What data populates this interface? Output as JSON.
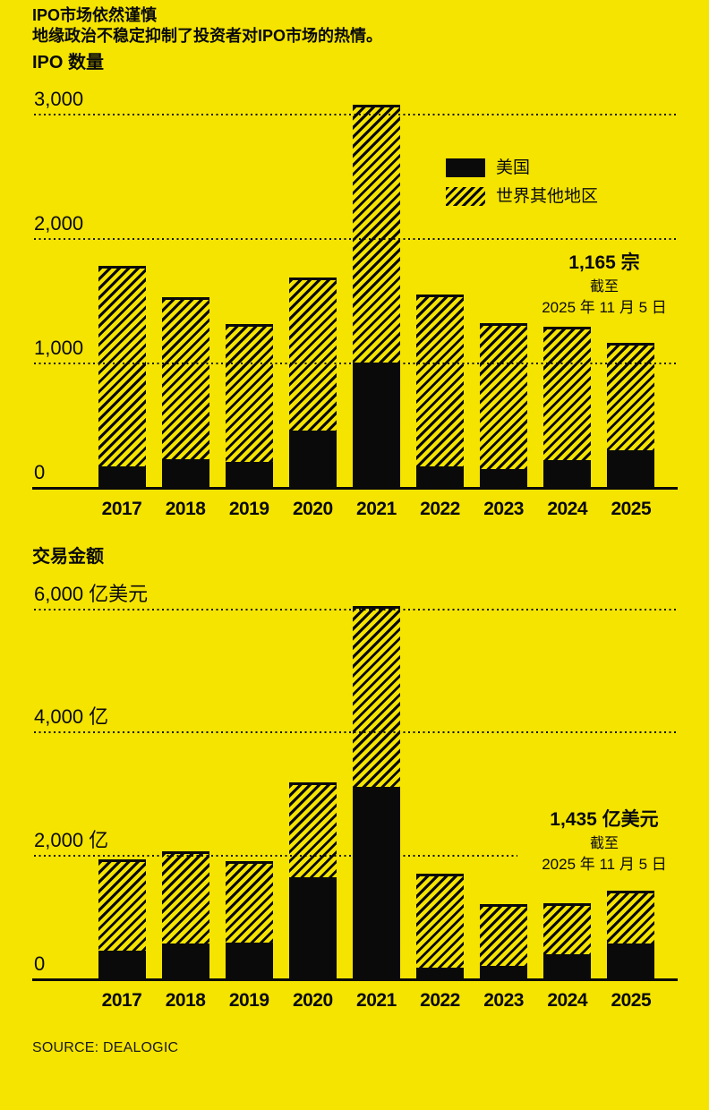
{
  "header": {
    "title": "IPO市场依然谨慎",
    "subtitle": "地缘政治不稳定抑制了投资者对IPO市场的热情。"
  },
  "legend": {
    "us": "美国",
    "rest_of_world": "世界其他地区"
  },
  "source": "SOURCE: DEALOGIC",
  "colors": {
    "background": "#F5E400",
    "bar_black": "#0A0A0A",
    "text": "#0A0A0A"
  },
  "chart_data": [
    {
      "type": "bar",
      "stacked": true,
      "heading": "IPO 数量",
      "categories": [
        "2017",
        "2018",
        "2019",
        "2020",
        "2021",
        "2022",
        "2023",
        "2024",
        "2025"
      ],
      "series": [
        {
          "name": "美国",
          "values": [
            175,
            233,
            209,
            457,
            1010,
            172,
            148,
            222,
            300
          ]
        },
        {
          "name": "世界其他地区",
          "values": [
            1610,
            1300,
            1107,
            1233,
            2070,
            1385,
            1176,
            1071,
            865
          ]
        }
      ],
      "totals": [
        1785,
        1533,
        1316,
        1690,
        3080,
        1557,
        1324,
        1293,
        1165
      ],
      "ylim": [
        0,
        3200
      ],
      "yticks": [
        {
          "value": 3000,
          "label": "3,000"
        },
        {
          "value": 2000,
          "label": "2,000"
        },
        {
          "value": 1000,
          "label": "1,000"
        },
        {
          "value": 0,
          "label": "0"
        }
      ],
      "grid": "horizontal dotted",
      "legend_position": "upper right",
      "annotation": {
        "headline": "1,165 宗",
        "as_of": "截至",
        "date": "2025 年 11 月 5 日"
      }
    },
    {
      "type": "bar",
      "stacked": true,
      "heading": "交易金额",
      "categories": [
        "2017",
        "2018",
        "2019",
        "2020",
        "2021",
        "2022",
        "2023",
        "2024",
        "2025"
      ],
      "series": [
        {
          "name": "美国",
          "values": [
            470,
            580,
            600,
            1660,
            3120,
            195,
            220,
            410,
            580
          ]
        },
        {
          "name": "世界其他地区",
          "values": [
            1480,
            1500,
            1315,
            1530,
            2930,
            1515,
            995,
            830,
            855
          ]
        }
      ],
      "totals": [
        1950,
        2080,
        1915,
        3190,
        6050,
        1710,
        1215,
        1240,
        1435
      ],
      "unit": "亿美元",
      "ylim": [
        0,
        6300
      ],
      "yticks": [
        {
          "value": 6000,
          "label": "6,000 亿美元"
        },
        {
          "value": 4000,
          "label": "4,000 亿"
        },
        {
          "value": 2000,
          "label": "2,000 亿"
        },
        {
          "value": 0,
          "label": "0"
        }
      ],
      "grid": "horizontal dotted",
      "legend_position": "none",
      "annotation": {
        "headline": "1,435 亿美元",
        "as_of": "截至",
        "date": "2025 年 11 月 5 日"
      }
    }
  ]
}
